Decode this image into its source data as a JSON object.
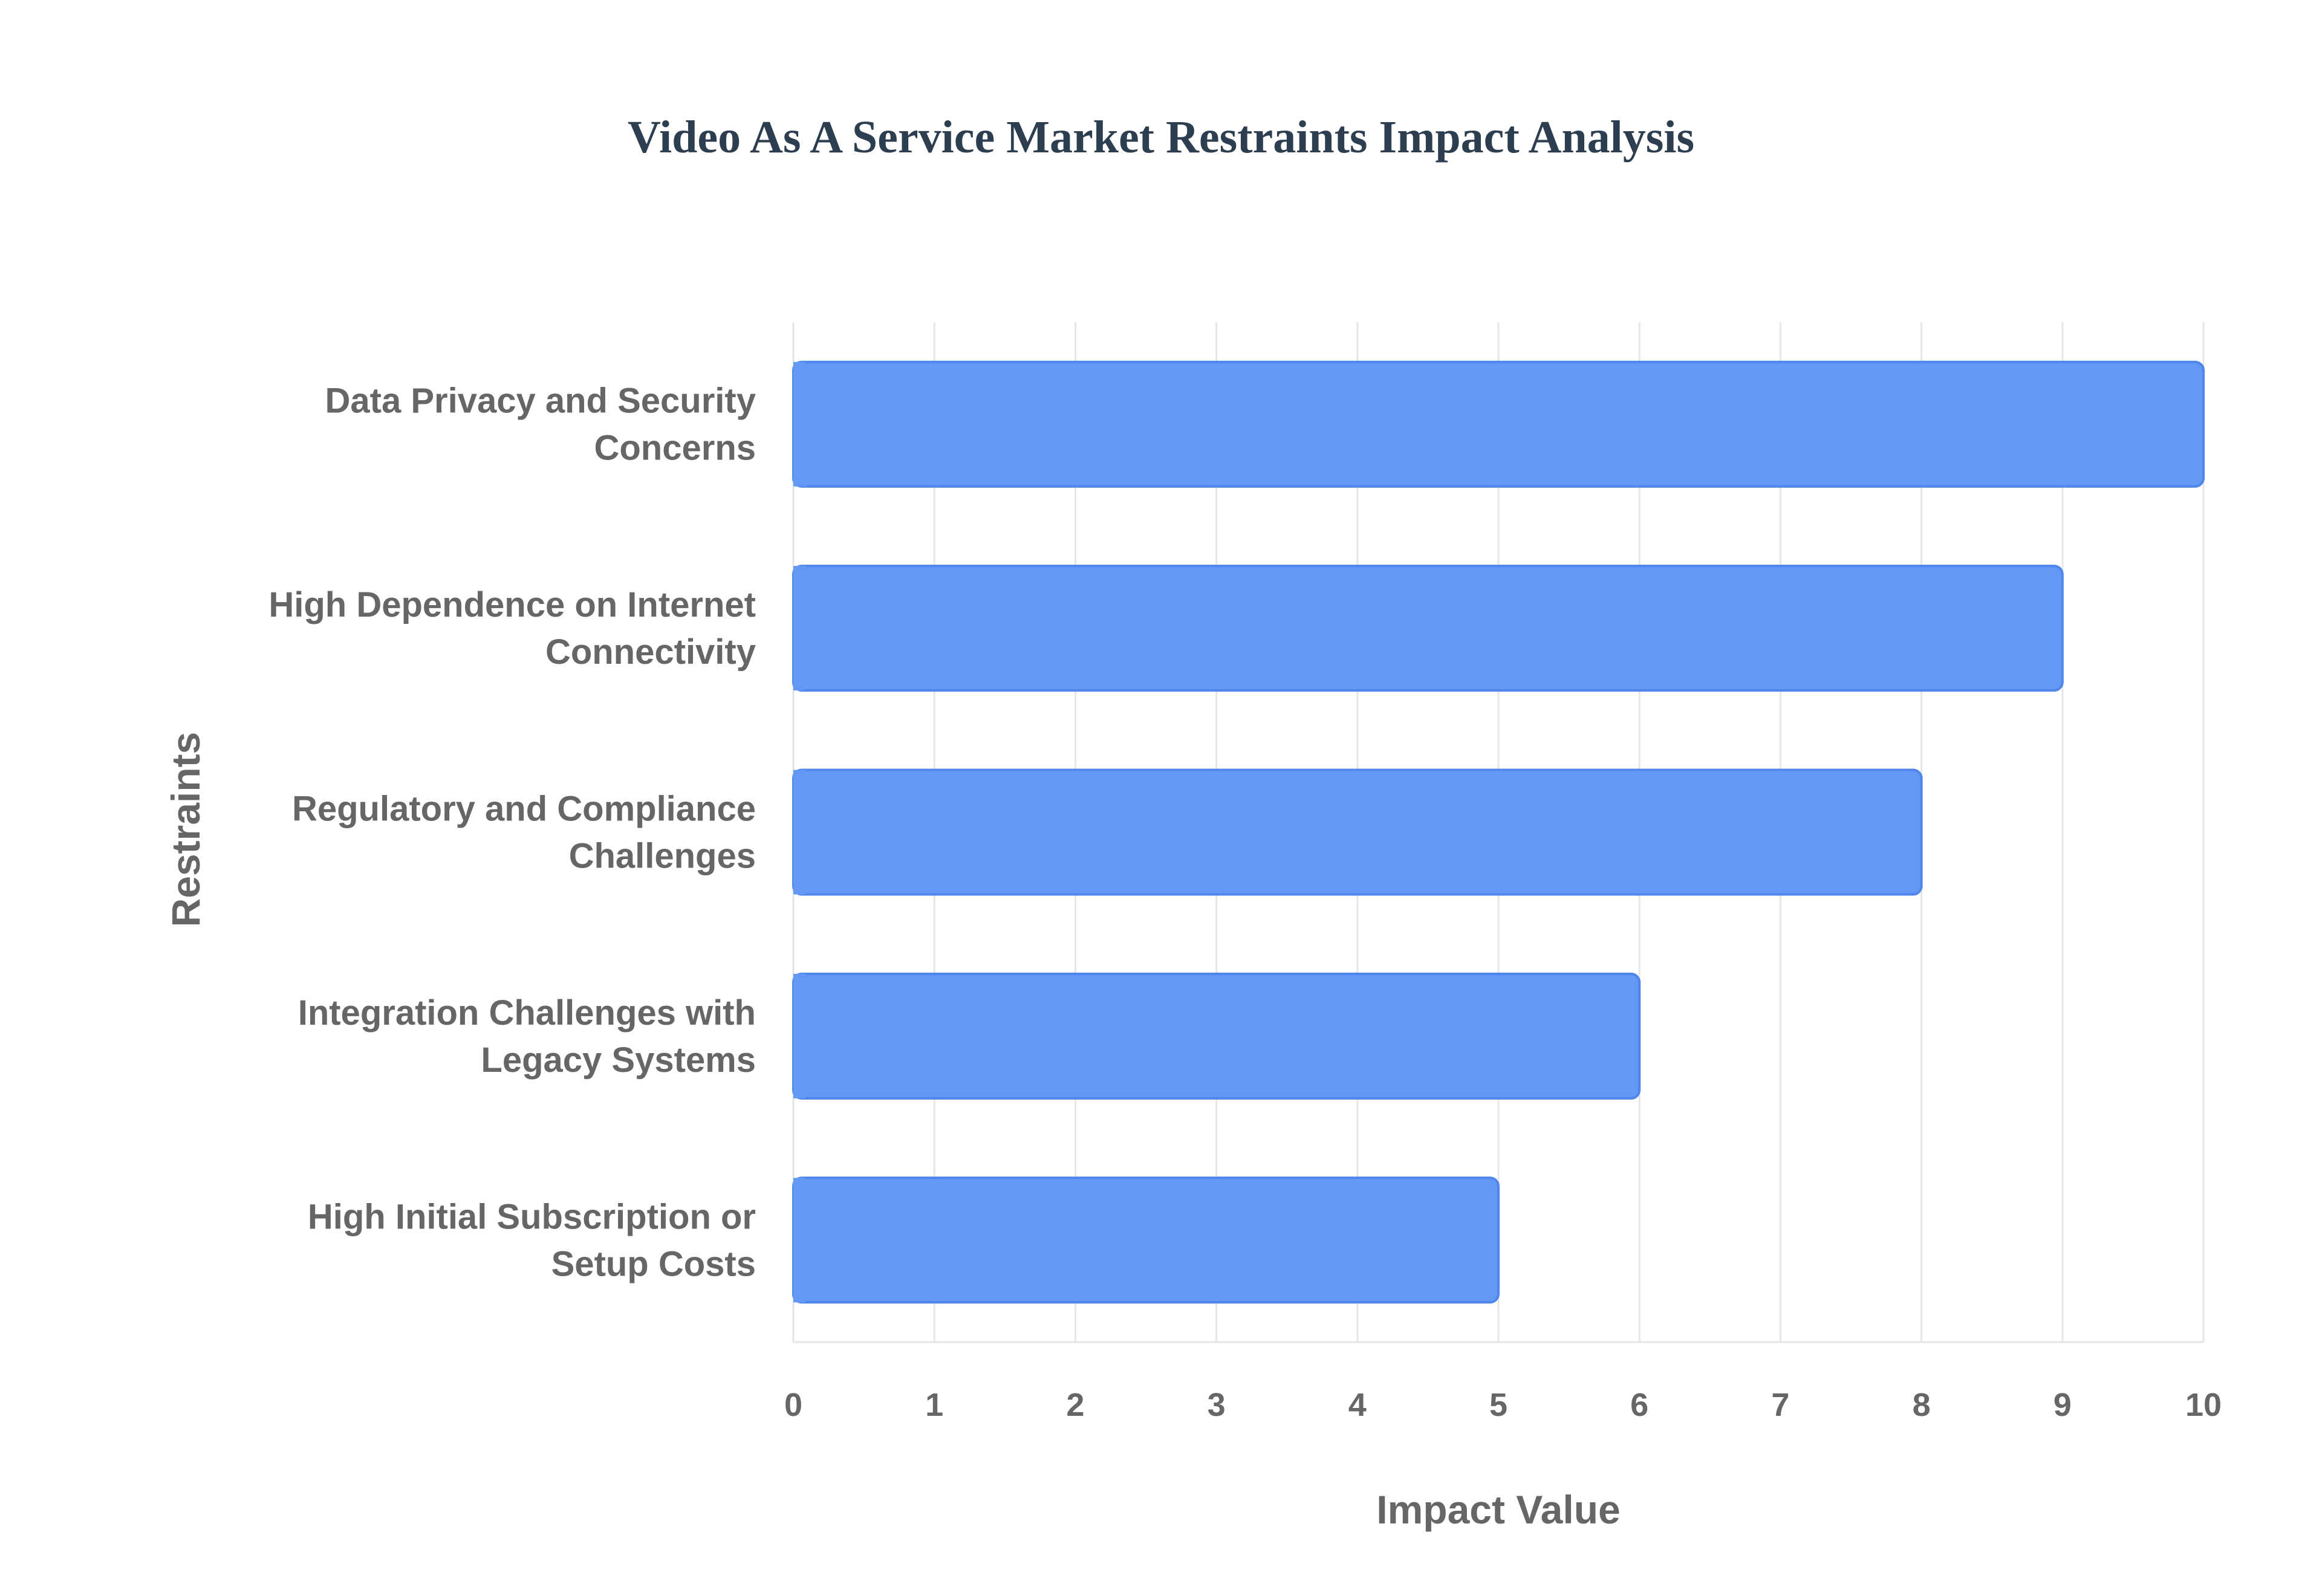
{
  "chart_data": {
    "type": "bar",
    "orientation": "horizontal",
    "title": "Video As A Service Market Restraints Impact Analysis",
    "xlabel": "Impact Value",
    "ylabel": "Restraints",
    "categories": [
      "Data Privacy and Security Concerns",
      "High Dependence on Internet Connectivity",
      "Regulatory and Compliance Challenges",
      "Integration Challenges with Legacy Systems",
      "High Initial Subscription or Setup Costs"
    ],
    "category_lines": [
      [
        "Data Privacy and Security",
        "Concerns"
      ],
      [
        "High Dependence on Internet",
        "Connectivity"
      ],
      [
        "Regulatory and Compliance",
        "Challenges"
      ],
      [
        "Integration Challenges with",
        "Legacy Systems"
      ],
      [
        "High Initial Subscription or",
        "Setup Costs"
      ]
    ],
    "values": [
      10,
      9,
      8,
      6,
      5
    ],
    "xlim": [
      0,
      10
    ],
    "xticks": [
      0,
      1,
      2,
      3,
      4,
      5,
      6,
      7,
      8,
      9,
      10
    ],
    "grid": true,
    "legend": "none",
    "colors": {
      "bar_fill": "#6399f5",
      "bar_stroke": "#4e86ee",
      "title": "#2c3e50",
      "text": "#666666",
      "grid": "#e6e6e6"
    }
  }
}
